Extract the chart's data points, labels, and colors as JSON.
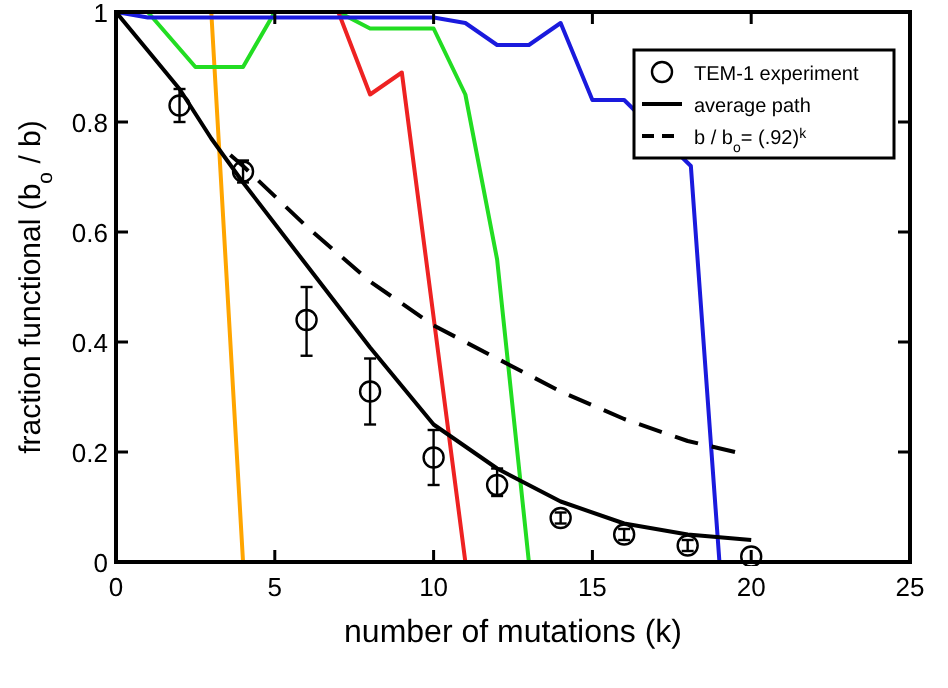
{
  "chart_data": {
    "type": "line",
    "xlabel": "number of mutations (k)",
    "ylabel": "fraction functional (b$_{o}$ / b)",
    "xlim": [
      0,
      25
    ],
    "ylim": [
      0,
      1
    ],
    "xticks": [
      0,
      5,
      10,
      15,
      20,
      25
    ],
    "yticks": [
      0,
      0.2,
      0.4,
      0.6,
      0.8,
      1
    ],
    "grid": false,
    "legend": "top right",
    "series": [
      {
        "color": "#ffa500",
        "x": [
          0,
          3,
          4
        ],
        "values": [
          1,
          1,
          0
        ]
      },
      {
        "color": "#22dd22",
        "x": [
          0,
          1,
          2.5,
          4,
          5,
          7,
          8,
          10,
          11,
          12,
          13
        ],
        "values": [
          1,
          1,
          0.9,
          0.9,
          1,
          1,
          0.97,
          0.97,
          0.85,
          0.55,
          0
        ]
      },
      {
        "color": "#ee2222",
        "x": [
          0,
          7,
          8,
          9,
          11
        ],
        "values": [
          1,
          1,
          0.85,
          0.89,
          0
        ]
      },
      {
        "color": "#1a1add",
        "x": [
          0,
          1,
          10,
          11,
          12,
          13,
          14,
          15,
          16,
          18.1,
          19
        ],
        "values": [
          1,
          0.99,
          0.99,
          0.98,
          0.94,
          0.94,
          0.98,
          0.84,
          0.84,
          0.72,
          0
        ]
      },
      {
        "type": "scatter",
        "name": "TEM-1 experiment",
        "color": "#000000",
        "marker": "circle",
        "x": [
          2,
          4,
          6,
          8,
          10,
          12,
          14,
          16,
          18,
          20
        ],
        "values": [
          0.83,
          0.71,
          0.44,
          0.31,
          0.19,
          0.14,
          0.08,
          0.05,
          0.03,
          0.01
        ],
        "errors": [
          [
            0.8,
            0.86
          ],
          [
            0.69,
            0.73
          ],
          [
            0.375,
            0.5
          ],
          [
            0.25,
            0.37
          ],
          [
            0.14,
            0.24
          ],
          [
            0.12,
            0.17
          ],
          [
            0.07,
            0.09
          ],
          [
            0.04,
            0.06
          ],
          [
            0.02,
            0.04
          ],
          null
        ]
      },
      {
        "name": "average path",
        "color": "#000000",
        "x": [
          0,
          1,
          2,
          3,
          4,
          6,
          8,
          10,
          12,
          14,
          16,
          18,
          20
        ],
        "values": [
          1,
          0.93,
          0.86,
          0.77,
          0.69,
          0.54,
          0.39,
          0.25,
          0.17,
          0.11,
          0.07,
          0.05,
          0.04
        ]
      },
      {
        "name": "b / b$_{o}$= (.92)$^{k}$",
        "color": "#000000",
        "line_style": "dashed",
        "x": [
          3.6,
          4,
          6,
          8,
          10,
          12,
          14,
          16,
          18,
          19.5
        ],
        "values": [
          0.74,
          0.72,
          0.61,
          0.51,
          0.43,
          0.37,
          0.31,
          0.26,
          0.22,
          0.2
        ]
      }
    ]
  }
}
